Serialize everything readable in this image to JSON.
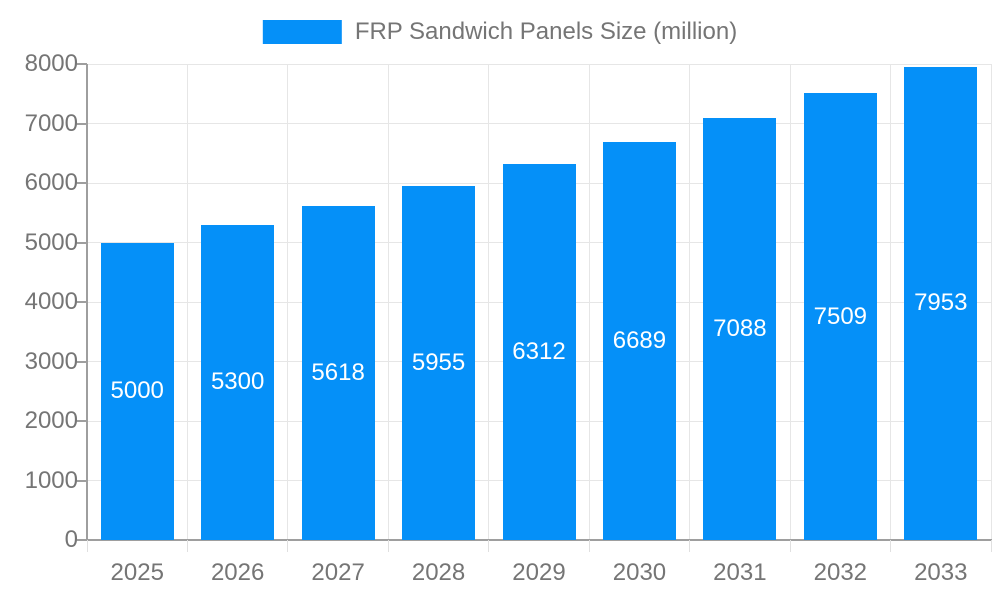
{
  "chart_data": {
    "type": "bar",
    "title": "FRP Sandwich Panels Size (million)",
    "categories": [
      "2025",
      "2026",
      "2027",
      "2028",
      "2029",
      "2030",
      "2031",
      "2032",
      "2033"
    ],
    "values": [
      5000,
      5300,
      5618,
      5955,
      6312,
      6689,
      7088,
      7509,
      7953
    ],
    "series": [
      {
        "name": "FRP Sandwich Panels Size (million)",
        "values": [
          5000,
          5300,
          5618,
          5955,
          6312,
          6689,
          7088,
          7509,
          7953
        ]
      }
    ],
    "xlabel": "",
    "ylabel": "",
    "ylim": [
      0,
      8000
    ],
    "y_ticks": [
      0,
      1000,
      2000,
      3000,
      4000,
      5000,
      6000,
      7000,
      8000
    ],
    "grid": true,
    "legend_position": "top",
    "bar_labels_shown": true
  },
  "legend": {
    "label": "FRP Sandwich Panels Size (million)"
  },
  "colors": {
    "bar": "#0590f8",
    "grid": "#e6e6e6",
    "axis": "#9e9e9e",
    "tick": "#9e9e9e",
    "boundary_tick": "#e0e0e0",
    "text": "#757575",
    "value_label": "#ffffff",
    "background": "#ffffff"
  }
}
